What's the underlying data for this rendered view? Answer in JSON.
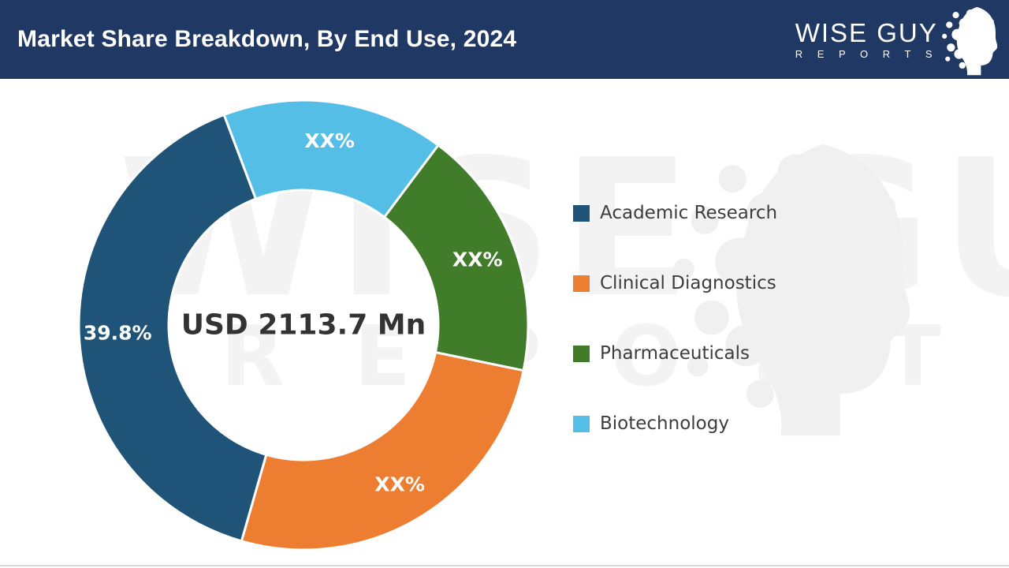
{
  "header": {
    "title": "Market Share Breakdown, By End Use, 2024",
    "logo": {
      "line1": "WISE GUY",
      "line2": "R E P O R T S"
    }
  },
  "watermark": {
    "line1": "WISE GUY",
    "line2": "R E P O R T S"
  },
  "colors": {
    "header_bg": "#203864",
    "academic_research": "#1F5377",
    "clinical_diagnostics": "#EC7D31",
    "pharmaceuticals": "#417C2B",
    "biotechnology": "#55BEE7"
  },
  "chart_data": {
    "type": "pie",
    "subtype": "donut",
    "title": "Market Share Breakdown, By End Use, 2024",
    "center_label": "USD 2113.7 Mn",
    "legend_position": "right",
    "start_angle_deg_clockwise_from_top": 196,
    "draw_order_clockwise": [
      "Academic Research",
      "Biotechnology",
      "Pharmaceuticals",
      "Clinical Diagnostics"
    ],
    "segments": [
      {
        "name": "Academic Research",
        "value": 39.8,
        "display_label": "39.8%",
        "color": "#1F5377"
      },
      {
        "name": "Clinical Diagnostics",
        "value": 26.2,
        "display_label": "XX%",
        "color": "#EC7D31"
      },
      {
        "name": "Pharmaceuticals",
        "value": 18.0,
        "display_label": "XX%",
        "color": "#417C2B"
      },
      {
        "name": "Biotechnology",
        "value": 16.0,
        "display_label": "XX%",
        "color": "#55BEE7"
      }
    ]
  }
}
